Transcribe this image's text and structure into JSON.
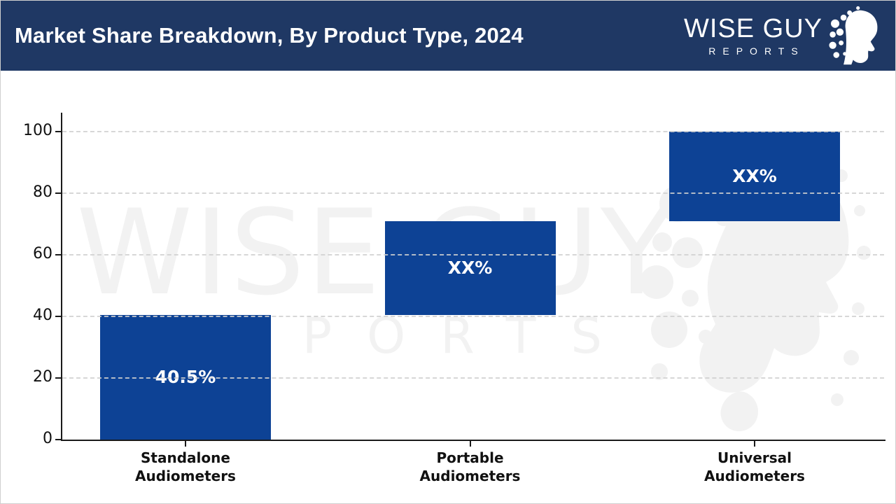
{
  "header": {
    "title": "Market Share Breakdown, By Product Type, 2024",
    "logo": {
      "primary": "WISE GUY",
      "secondary": "REPORTS"
    }
  },
  "watermark": {
    "primary": "WISE GUY",
    "secondary": "REPORTS"
  },
  "chart_data": {
    "type": "bar",
    "subtype": "stacked-waterfall",
    "title": "Market Share Breakdown, By Product Type, 2024",
    "categories": [
      [
        "Standalone",
        "Audiometers"
      ],
      [
        "Portable",
        "Audiometers"
      ],
      [
        "Universal",
        "Audiometers"
      ]
    ],
    "series": [
      {
        "name": "Market Share (%)",
        "points": [
          {
            "category": "Standalone Audiometers",
            "start": 0,
            "end": 40.5,
            "label": "40.5%"
          },
          {
            "category": "Portable Audiometers",
            "start": 40.5,
            "end": 71,
            "label": "XX%"
          },
          {
            "category": "Universal Audiometers",
            "start": 71,
            "end": 100,
            "label": "XX%"
          }
        ]
      }
    ],
    "ylim": [
      0,
      100
    ],
    "yticks": [
      0,
      20,
      40,
      60,
      80,
      100
    ],
    "grid": true,
    "grid_style": "dashed",
    "legend": false,
    "bar_color": "#0d4295",
    "bar_label_color": "#ffffff",
    "axis_color": "#1a1a1a",
    "gridline_color": "#d0d0d0",
    "header_color": "#1f3864",
    "watermark_color": "#f2f2f2",
    "background": "#ffffff"
  }
}
